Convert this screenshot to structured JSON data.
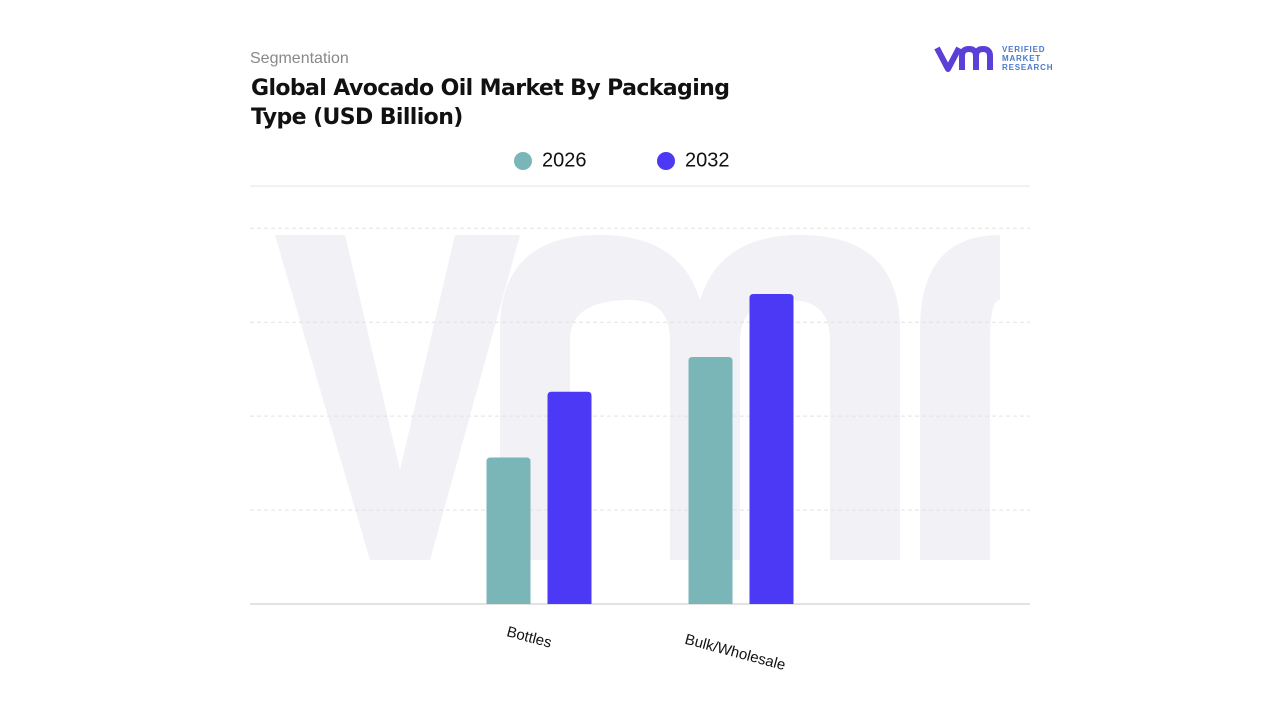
{
  "kicker": "Segmentation",
  "logo": [
    "VERIFIED",
    "MARKET",
    "RESEARCH"
  ],
  "chart_data": {
    "type": "bar",
    "title": "Global Avocado Oil Market By Packaging Type (USD Billion)",
    "categories": [
      "Bottles",
      "Bulk/Wholesale"
    ],
    "series": [
      {
        "name": "2026",
        "color": "#7ab5b8",
        "values": [
          1.56,
          2.63
        ]
      },
      {
        "name": "2032",
        "color": "#4b39f5",
        "values": [
          2.26,
          3.3
        ]
      }
    ],
    "ylim": [
      0,
      4.45
    ],
    "yticks": [
      1,
      2,
      3,
      4
    ],
    "grid": true,
    "legend": "top"
  }
}
